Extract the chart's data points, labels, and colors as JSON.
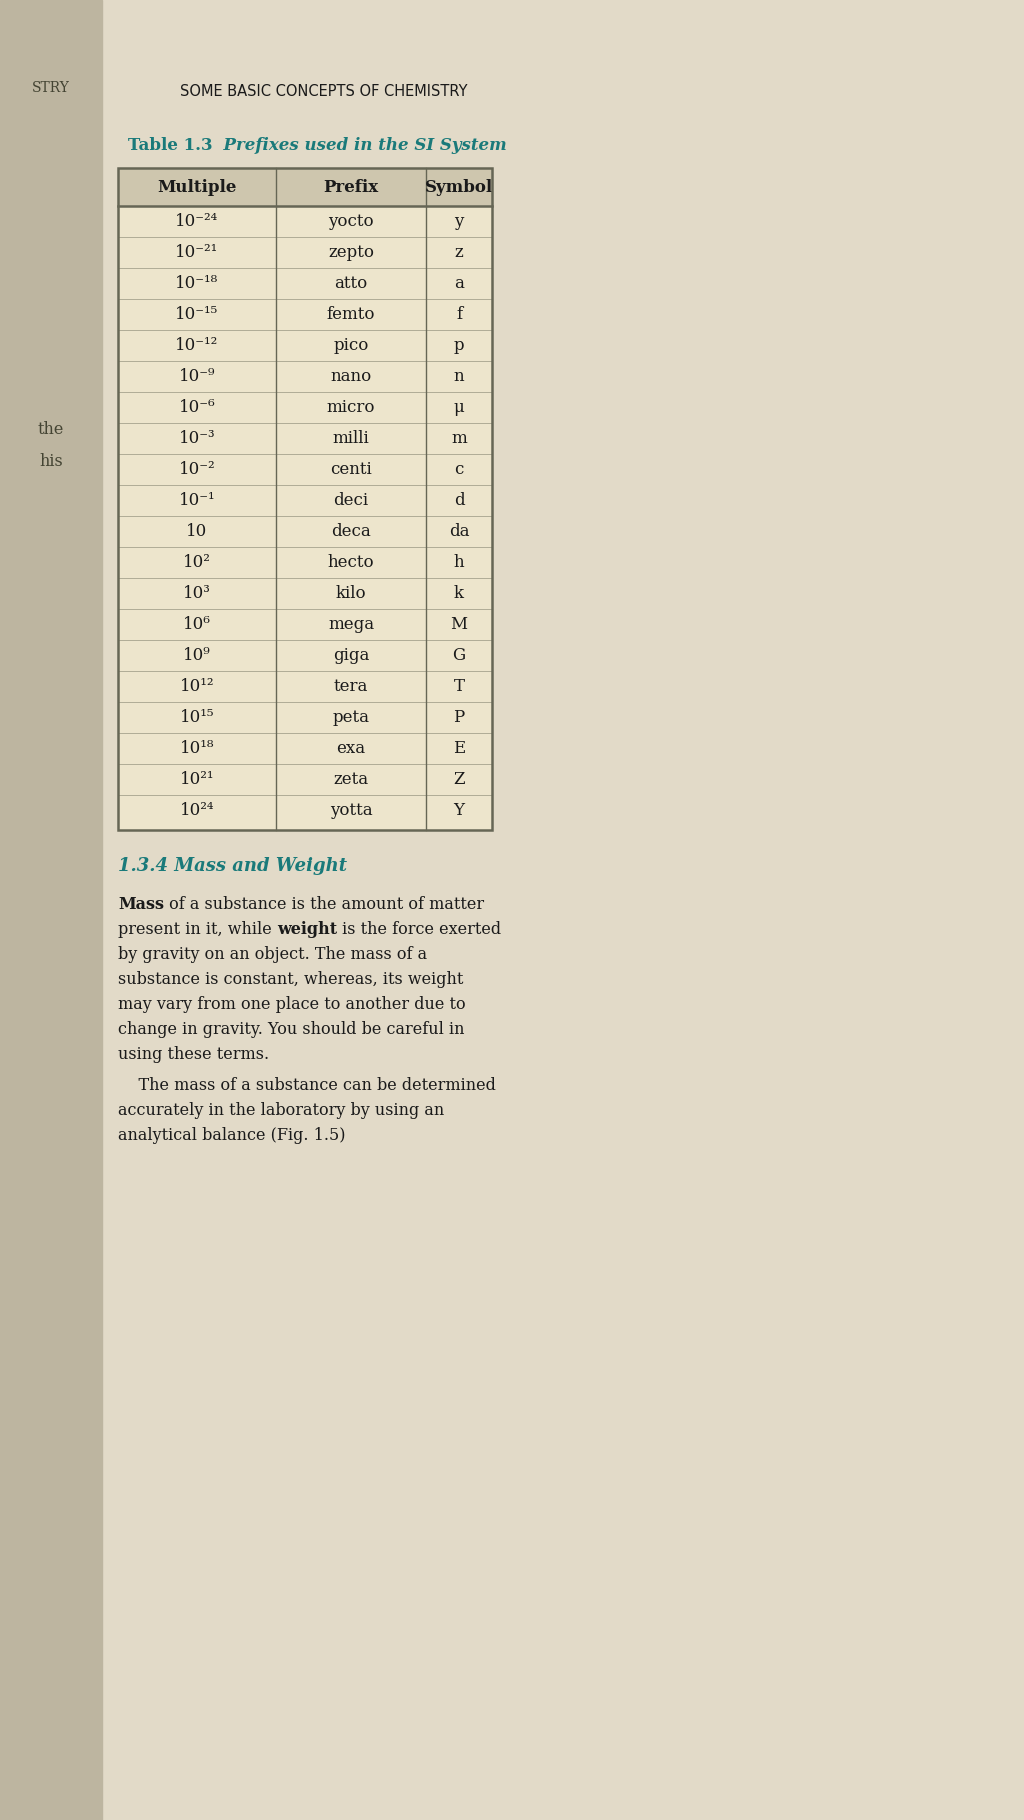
{
  "page_title": "SOME BASIC CONCEPTS OF CHEMISTRY",
  "table_title": "Table 1.3",
  "table_subtitle": "  Prefixes used in the SI System",
  "col_headers": [
    "Multiple",
    "Prefix",
    "Symbol"
  ],
  "rows": [
    [
      "10⁻²⁴",
      "yocto",
      "y"
    ],
    [
      "10⁻²¹",
      "zepto",
      "z"
    ],
    [
      "10⁻¹⁸",
      "atto",
      "a"
    ],
    [
      "10⁻¹⁵",
      "femto",
      "f"
    ],
    [
      "10⁻¹²",
      "pico",
      "p"
    ],
    [
      "10⁻⁹",
      "nano",
      "n"
    ],
    [
      "10⁻⁶",
      "micro",
      "μ"
    ],
    [
      "10⁻³",
      "milli",
      "m"
    ],
    [
      "10⁻²",
      "centi",
      "c"
    ],
    [
      "10⁻¹",
      "deci",
      "d"
    ],
    [
      "10",
      "deca",
      "da"
    ],
    [
      "10²",
      "hecto",
      "h"
    ],
    [
      "10³",
      "kilo",
      "k"
    ],
    [
      "10⁶",
      "mega",
      "M"
    ],
    [
      "10⁹",
      "giga",
      "G"
    ],
    [
      "10¹²",
      "tera",
      "T"
    ],
    [
      "10¹⁵",
      "peta",
      "P"
    ],
    [
      "10¹⁸",
      "exa",
      "E"
    ],
    [
      "10²¹",
      "zeta",
      "Z"
    ],
    [
      "10²⁴",
      "yotta",
      "Y"
    ]
  ],
  "section_title": "1.3.4 Mass and Weight",
  "para1_bold1": "Mass",
  "para1_mid": " of a substance is the amount of matter\npresent in it, while ",
  "para1_bold2": "weight",
  "para1_end": " is the force exerted\nby gravity on an object. The mass of a\nsubstance is constant, whereas, its weight\nmay vary from one place to another due to\nchange in gravity. You should be careful in\nusing these terms.",
  "para2": "    The mass of a substance can be determined\naccurately in the laboratory by using an\nanalytical balance (Fig. 1.5)",
  "bg_color": "#ddd5bf",
  "page_bg": "#e2dac8",
  "table_bg": "#ede5cc",
  "header_bg": "#cec6ae",
  "teal_color": "#1a7a7a",
  "text_color": "#1a1a1a",
  "border_color": "#666655",
  "left_bar_color": "#bdb5a0",
  "margin_text_color": "#444433"
}
